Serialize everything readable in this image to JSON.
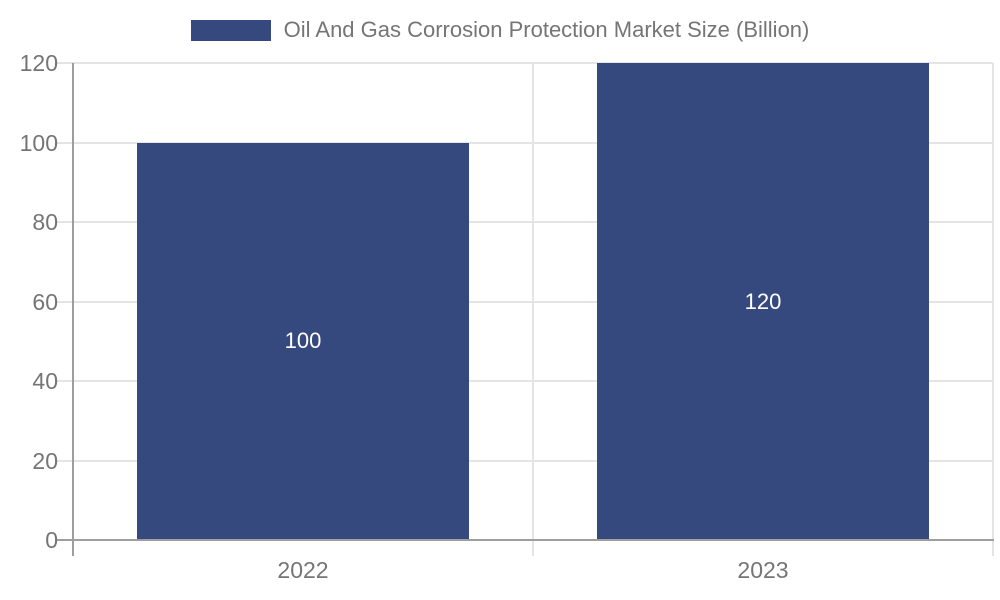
{
  "chart_data": {
    "type": "bar",
    "title": "Oil And Gas Corrosion Protection Market Size (Billion)",
    "categories": [
      "2022",
      "2023"
    ],
    "values": [
      100,
      120
    ],
    "series": [
      {
        "name": "Oil And Gas Corrosion Protection Market Size (Billion)",
        "values": [
          100,
          120
        ]
      }
    ],
    "bar_value_labels": [
      "100",
      "120"
    ],
    "xlabel": "",
    "ylabel": "",
    "ylim": [
      0,
      120
    ],
    "yticks": [
      0,
      20,
      40,
      60,
      80,
      100,
      120
    ],
    "grid": true,
    "legend_position": "top-center",
    "bar_width_fraction": 0.72,
    "colors": {
      "bar": "#35497F",
      "grid": "#e4e4e4",
      "axis": "#9e9e9e",
      "tick_label": "#757575",
      "legend_label": "#757575",
      "bar_value_label": "#ffffff",
      "background": "#ffffff"
    }
  }
}
